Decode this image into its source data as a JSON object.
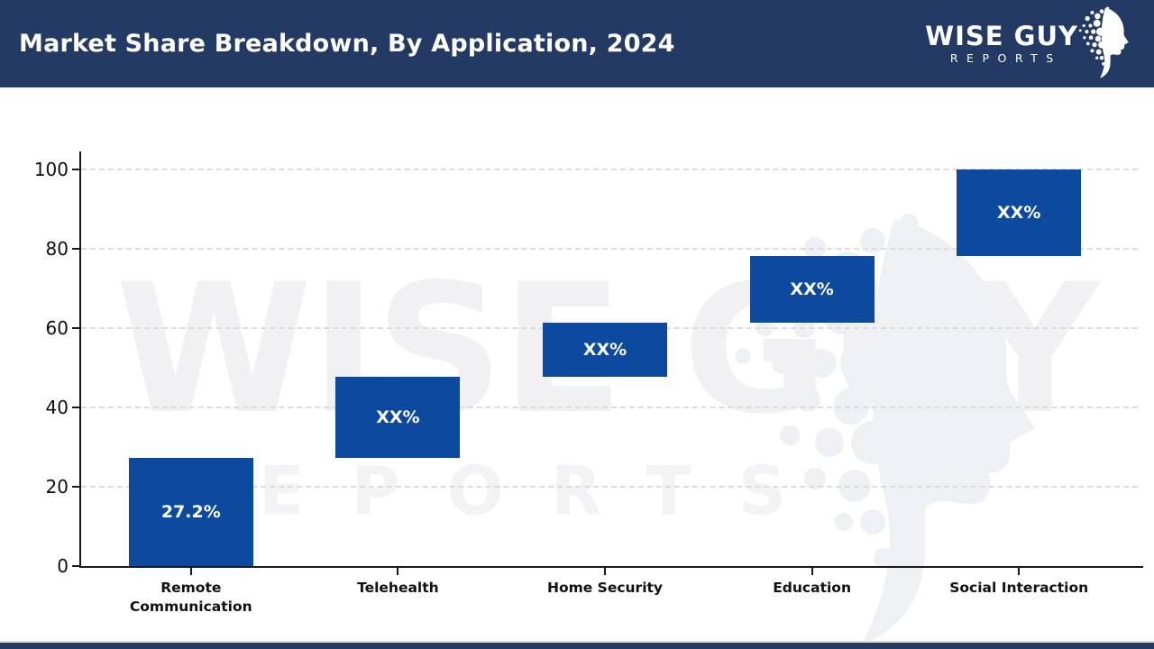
{
  "header": {
    "title": "Market Share Breakdown, By Application, 2024",
    "bg_color": "#223A64"
  },
  "logo": {
    "line1": "WISE GUY",
    "line2": "REPORTS"
  },
  "watermark": {
    "line1": "WISE GUY",
    "line2": "REPORTS"
  },
  "chart_data": {
    "type": "bar",
    "subtype": "floating-segment-waterfall",
    "title": "Market Share Breakdown, By Application, 2024",
    "categories": [
      "Remote Communication",
      "Telehealth",
      "Home Security",
      "Education",
      "Social Interaction"
    ],
    "series": [
      {
        "name": "Market share (%)",
        "segments": [
          {
            "category": "Remote Communication",
            "start": 0,
            "end": 27.2,
            "label": "27.2%"
          },
          {
            "category": "Telehealth",
            "start": 27.2,
            "end": 47.7,
            "label": "XX%"
          },
          {
            "category": "Home Security",
            "start": 47.7,
            "end": 61.4,
            "label": "XX%"
          },
          {
            "category": "Education",
            "start": 61.4,
            "end": 78.2,
            "label": "XX%"
          },
          {
            "category": "Social Interaction",
            "start": 78.2,
            "end": 100,
            "label": "XX%"
          }
        ]
      }
    ],
    "xlabel": "",
    "ylabel": "",
    "ylim": [
      0,
      104.5
    ],
    "yticks": [
      0,
      20,
      40,
      60,
      80,
      100
    ],
    "grid": "horizontal-dashed",
    "legend": false,
    "bar_color": "#0B4A9E",
    "bar_label_color": "#FFFFFF",
    "axis_color": "#1A1A1A",
    "grid_color": "#DCDCDC"
  },
  "footer": {
    "bg_color": "#223A64"
  }
}
